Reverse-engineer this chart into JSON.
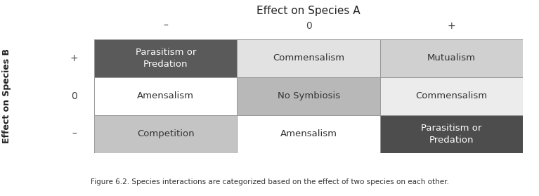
{
  "title": "Effect on Species A",
  "ylabel": "Effect on Species B",
  "col_labels": [
    "–",
    "0",
    "+"
  ],
  "row_labels": [
    "+",
    "0",
    "–"
  ],
  "cells": [
    [
      "Parasitism or\nPredation",
      "Commensalism",
      "Mutualism"
    ],
    [
      "Amensalism",
      "No Symbiosis",
      "Commensalism"
    ],
    [
      "Competition",
      "Amensalism",
      "Parasitism or\nPredation"
    ]
  ],
  "cell_colors": [
    [
      "#5a5a5a",
      "#e2e2e2",
      "#d0d0d0"
    ],
    [
      "#ffffff",
      "#b8b8b8",
      "#ececec"
    ],
    [
      "#c4c4c4",
      "#ffffff",
      "#4d4d4d"
    ]
  ],
  "cell_text_colors": [
    [
      "#ffffff",
      "#333333",
      "#333333"
    ],
    [
      "#333333",
      "#333333",
      "#333333"
    ],
    [
      "#333333",
      "#333333",
      "#ffffff"
    ]
  ],
  "figure_caption_bold": "Figure 6.2.",
  "figure_caption_normal": " Species interactions are categorized based on the effect of two species on each other.",
  "background_color": "#ffffff",
  "border_color": "#999999",
  "title_fontsize": 11,
  "label_fontsize": 10,
  "cell_fontsize": 9.5,
  "caption_fontsize": 7.5
}
